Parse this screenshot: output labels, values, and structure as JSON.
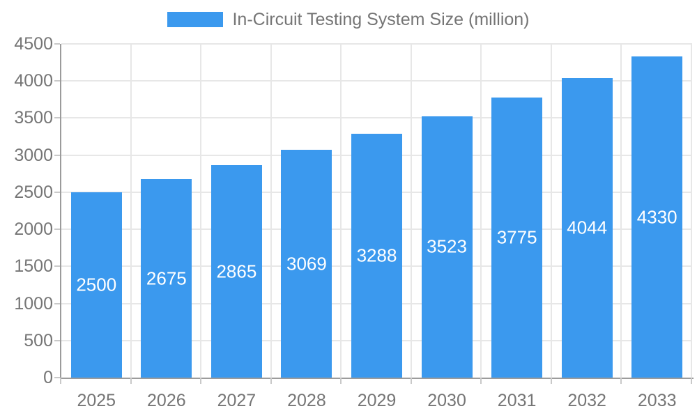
{
  "legend": {
    "label": "In-Circuit Testing System Size (million)"
  },
  "colors": {
    "background": "#FFFFFF",
    "bar": "#3B99EE",
    "bar_label": "#FFFFFF",
    "grid": "#E7E7E7",
    "axis": "#9B9B9B",
    "tick": "#C9C9C9",
    "text": "#757575"
  },
  "chart_data": {
    "type": "bar",
    "title": "In-Circuit Testing System Size (million)",
    "categories": [
      "2025",
      "2026",
      "2027",
      "2028",
      "2029",
      "2030",
      "2031",
      "2032",
      "2033"
    ],
    "values": [
      2500,
      2675,
      2865,
      3069,
      3288,
      3523,
      3775,
      4044,
      4330
    ],
    "xlabel": "",
    "ylabel": "",
    "ylim": [
      0,
      4500
    ],
    "ytick_step": 500,
    "yticks": [
      "0",
      "500",
      "1000",
      "1500",
      "2000",
      "2500",
      "3000",
      "3500",
      "4000",
      "4500"
    ],
    "grid": true,
    "legend_position": "top-center",
    "bar_label_position": "inside-center"
  }
}
